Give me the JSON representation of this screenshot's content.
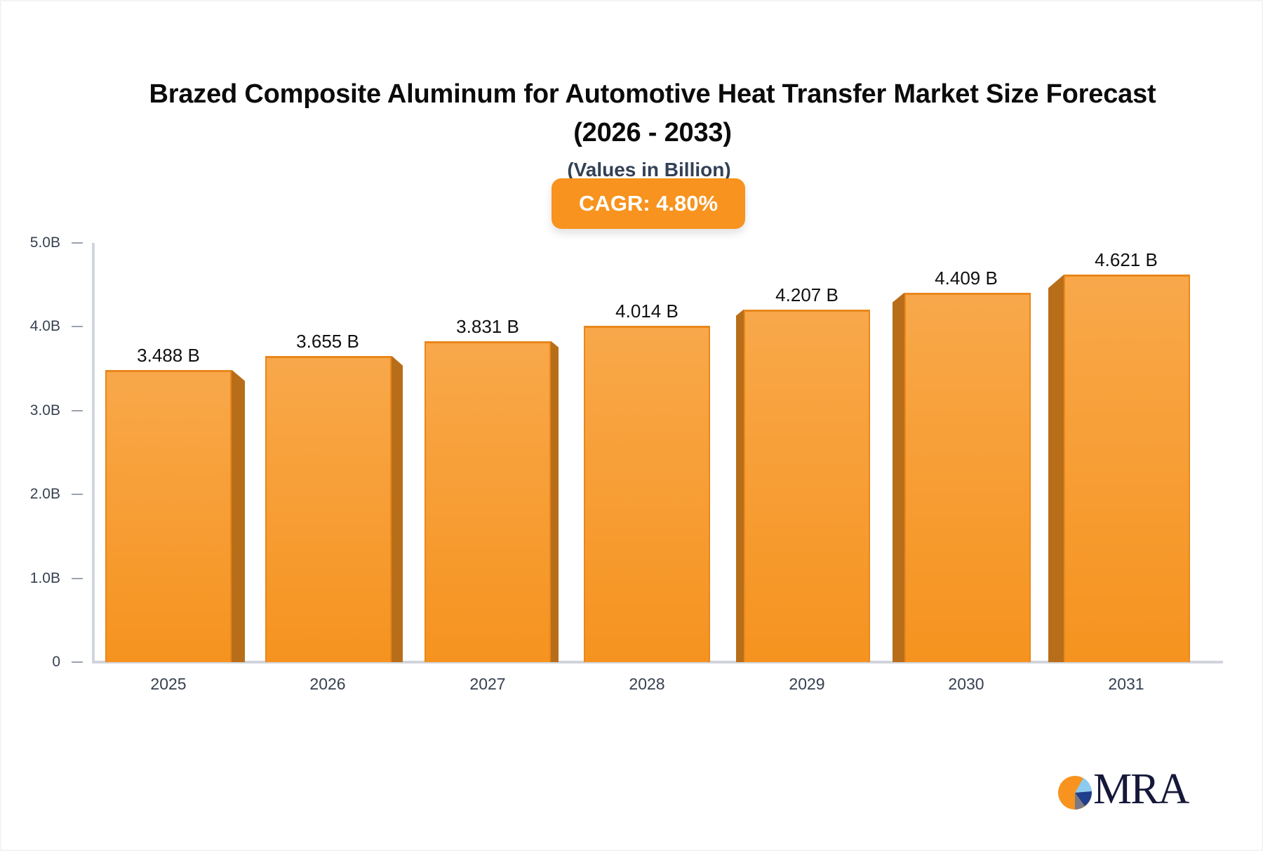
{
  "title": {
    "line1": "Brazed Composite Aluminum for Automotive Heat Transfer Market Size Forecast",
    "line2": "(2026 - 2033)"
  },
  "subtitle": "(Values in Billion)",
  "badge": {
    "label": "CAGR: 4.80%"
  },
  "logo": {
    "text": "MRA",
    "icon": "pie-chart-logo-icon"
  },
  "colors": {
    "bar_front_top": "#f8a84a",
    "bar_front_bottom": "#f6931f",
    "bar_side": "#b86e19",
    "badge": "#f7931e",
    "axis": "#d1d5db",
    "logo_navy": "#16183a"
  },
  "y_ticks": [
    "5.0B",
    "4.0B",
    "3.0B",
    "2.0B",
    "1.0B",
    "0"
  ],
  "chart_data": {
    "type": "bar",
    "title": "Brazed Composite Aluminum for Automotive Heat Transfer Market Size Forecast (2026 - 2033)",
    "subtitle": "(Values in Billion)",
    "annotation": "CAGR: 4.80%",
    "categories": [
      "2025",
      "2026",
      "2027",
      "2028",
      "2029",
      "2030",
      "2031"
    ],
    "values": [
      3.488,
      3.655,
      3.831,
      4.014,
      4.207,
      4.409,
      4.621
    ],
    "value_labels": [
      "3.488 B",
      "3.655 B",
      "3.831 B",
      "4.014 B",
      "4.207 B",
      "4.409 B",
      "4.621 B"
    ],
    "xlabel": "",
    "ylabel": "",
    "ylim": [
      0,
      5.0
    ],
    "y_tick_values": [
      0,
      1.0,
      2.0,
      3.0,
      4.0,
      5.0
    ],
    "y_tick_labels": [
      "0",
      "1.0B",
      "2.0B",
      "3.0B",
      "4.0B",
      "5.0B"
    ],
    "grid": false,
    "legend": "none",
    "style": "3d-bar"
  }
}
